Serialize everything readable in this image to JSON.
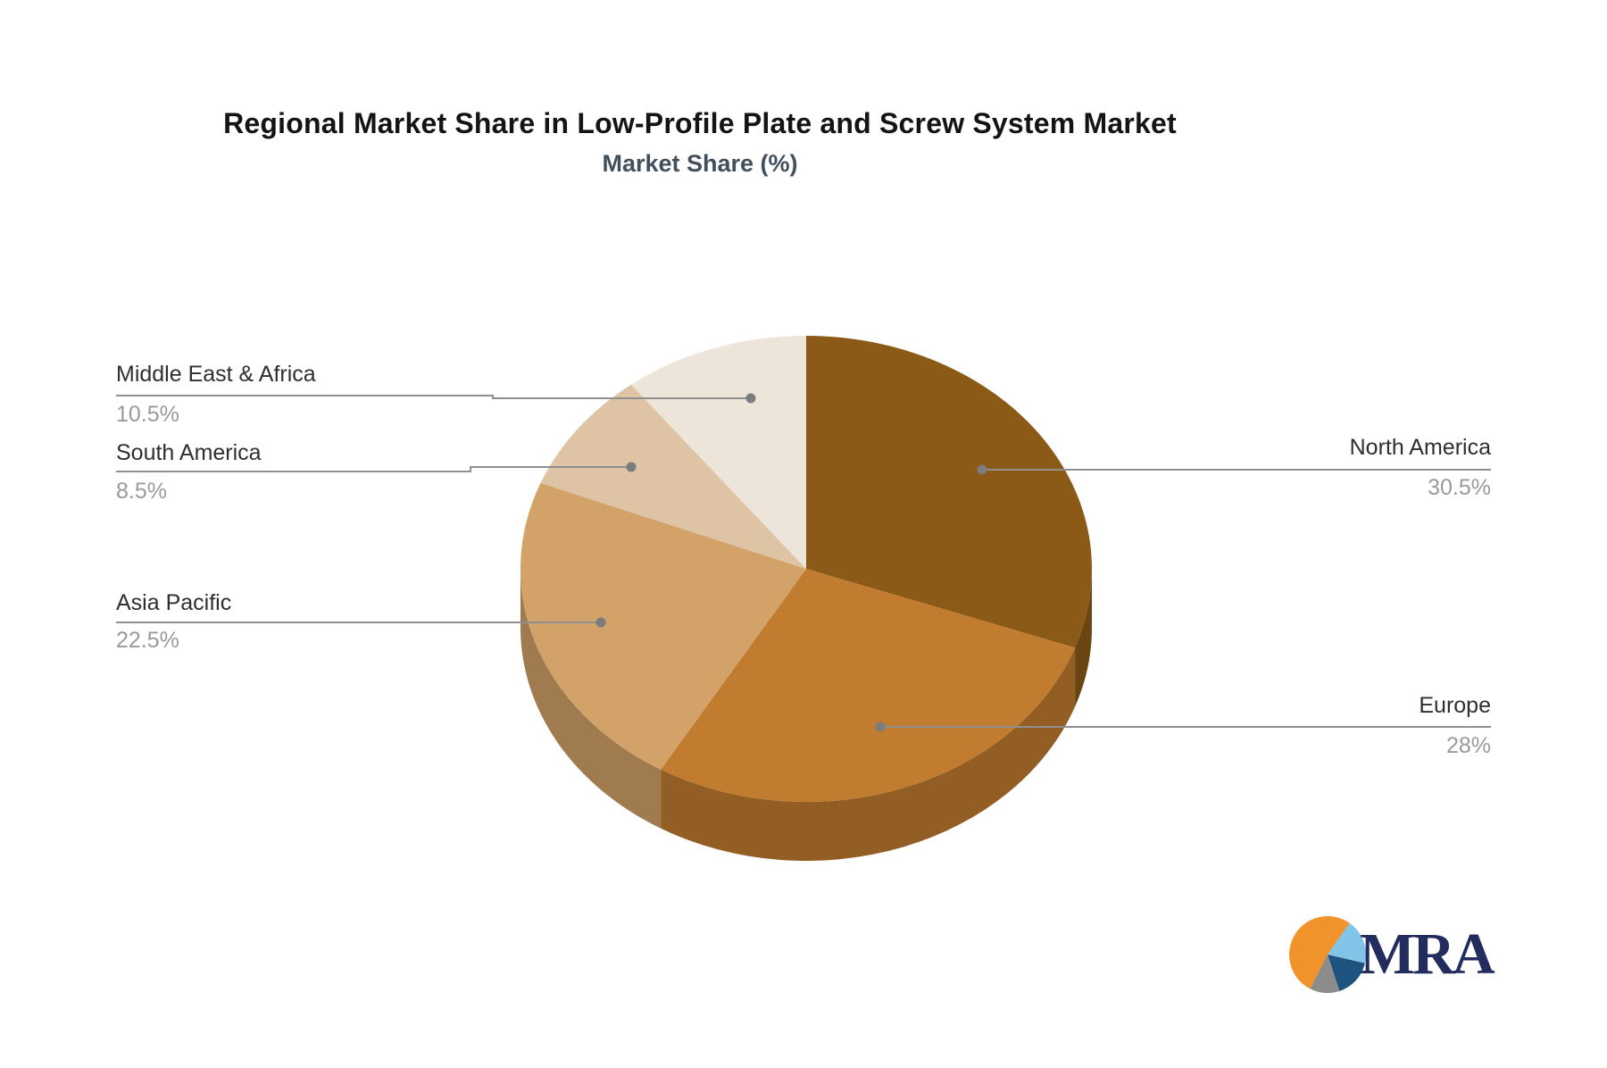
{
  "header": {
    "title": "Regional Market Share in Low-Profile Plate and Screw System Market",
    "subtitle": "Market Share (%)"
  },
  "chart_data": {
    "type": "pie",
    "title": "Regional Market Share in Low-Profile Plate and Screw System Market",
    "subtitle": "Market Share (%)",
    "unit": "%",
    "style": "3d-pie",
    "start_angle": "12-o-clock",
    "direction": "clockwise",
    "legend_position": "callout-labels",
    "slices": [
      {
        "label": "North America",
        "value": 30.5,
        "display": "30.5%",
        "color": "#8B5A16",
        "callout_side": "right"
      },
      {
        "label": "Europe",
        "value": 28,
        "display": "28%",
        "color": "#C17C30",
        "callout_side": "right"
      },
      {
        "label": "Asia Pacific",
        "value": 22.5,
        "display": "22.5%",
        "color": "#D2A268",
        "callout_side": "left"
      },
      {
        "label": "South America",
        "value": 8.5,
        "display": "8.5%",
        "color": "#DEC3A4",
        "callout_side": "left"
      },
      {
        "label": "Middle East & Africa",
        "value": 10.5,
        "display": "10.5%",
        "color": "#EDE4DA",
        "callout_side": "left"
      }
    ],
    "label_color": "#2f2f2f",
    "value_color": "#9a9a9a",
    "connector_line_color": "#8f8f8f",
    "connector_dot_color": "#7c7c7c"
  },
  "logo": {
    "text": "MRA",
    "text_color": "#232C5E",
    "icon_colors": {
      "orange": "#F0932A",
      "light_blue": "#82C3E8",
      "navy": "#1F537F",
      "gray": "#8C8C8C"
    }
  }
}
